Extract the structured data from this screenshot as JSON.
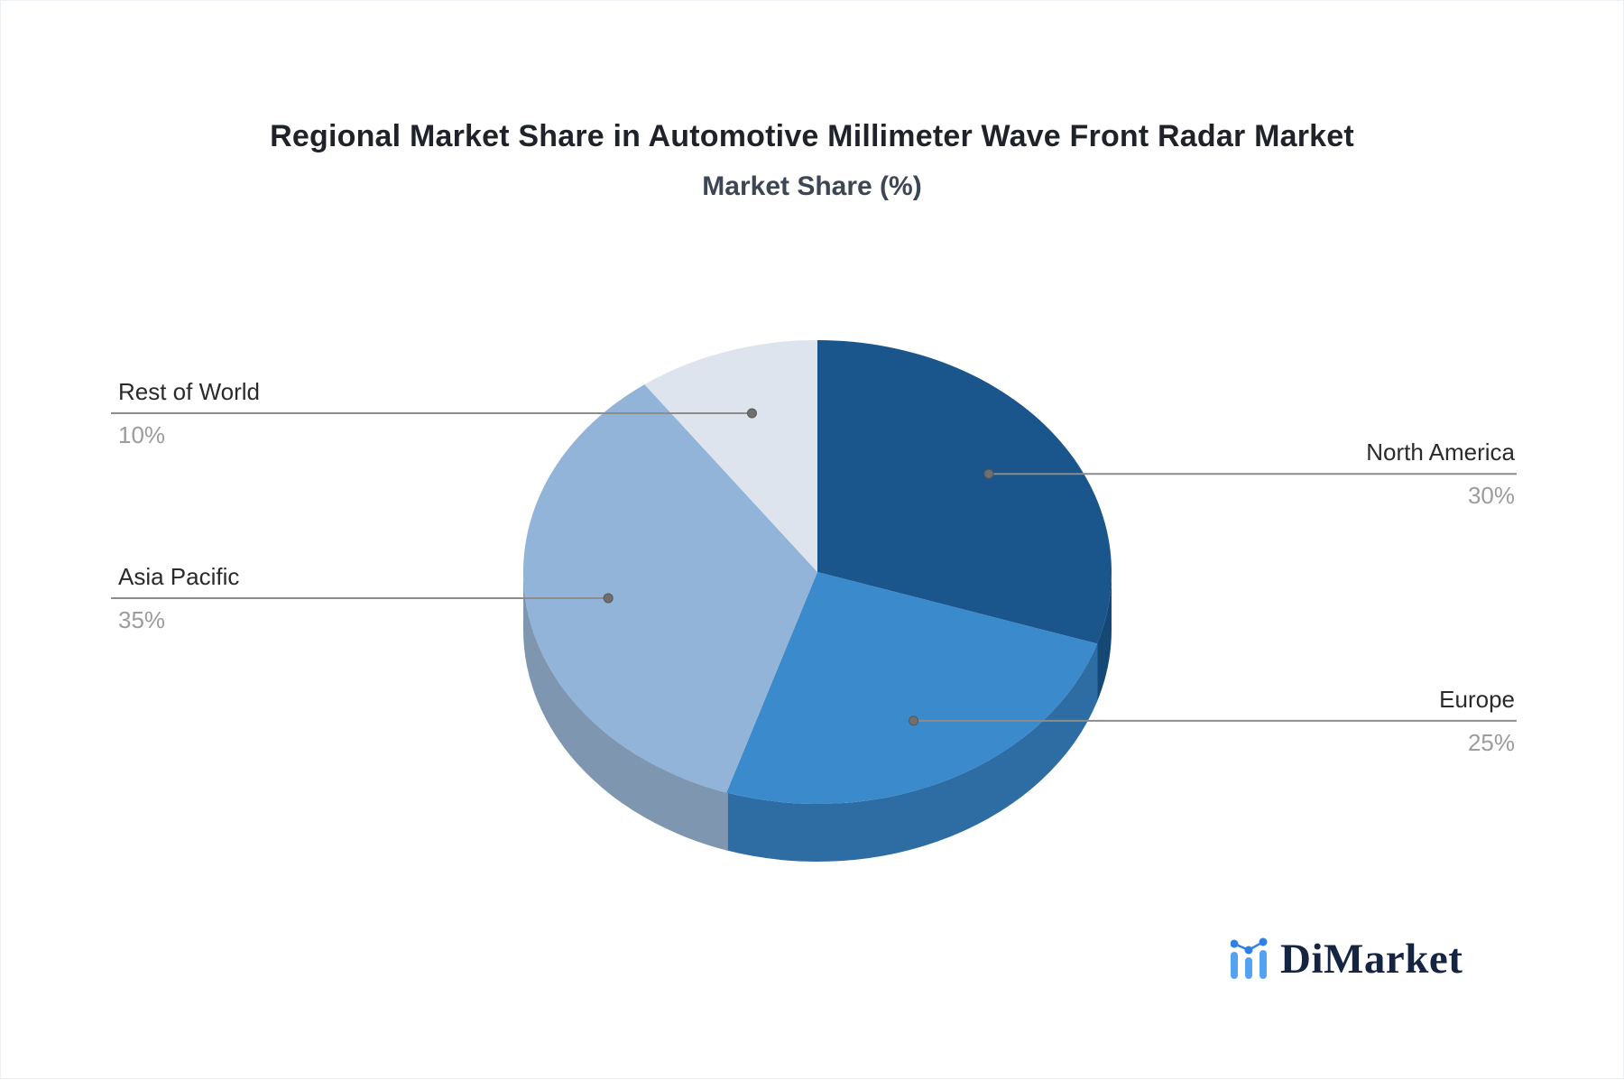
{
  "header": {
    "title": "Regional Market Share in Automotive Millimeter Wave Front Radar Market",
    "subtitle": "Market Share (%)"
  },
  "chart_data": {
    "type": "pie",
    "style": "3d-pie",
    "title": "Regional Market Share in Automotive Millimeter Wave Front Radar Market",
    "value_axis_label": "Market Share (%)",
    "unit": "%",
    "start_angle_deg": 0,
    "direction": "clockwise",
    "legend_position": "leader-line-callouts",
    "slices": [
      {
        "label": "North America",
        "value": 30,
        "display_value": "30%",
        "color": "#1A568C",
        "side_color": "#154875",
        "callout_side": "right"
      },
      {
        "label": "Europe",
        "value": 25,
        "display_value": "25%",
        "color": "#3B8ACB",
        "side_color": "#2E6DA4",
        "callout_side": "right"
      },
      {
        "label": "Asia Pacific",
        "value": 35,
        "display_value": "35%",
        "color": "#91B4D8",
        "side_color": "#7E96AF",
        "callout_side": "left"
      },
      {
        "label": "Rest of World",
        "value": 10,
        "display_value": "10%",
        "color": "#DEE4EE",
        "side_color": "#AEB9C9",
        "callout_side": "left"
      }
    ]
  },
  "callout_style": {
    "line_color": "#8C8C8C",
    "dot_color": "#6F6F6F",
    "dot_edge_color": "#585858",
    "label_color": "#2A2A2A",
    "value_color": "#9C9C9C"
  },
  "branding": {
    "name": "DiMarket",
    "icon": "bar-chart-trend-icon",
    "text_color": "#152440",
    "icon_bar_color": "#54A3F3",
    "icon_dot_color": "#2E7FE6"
  }
}
